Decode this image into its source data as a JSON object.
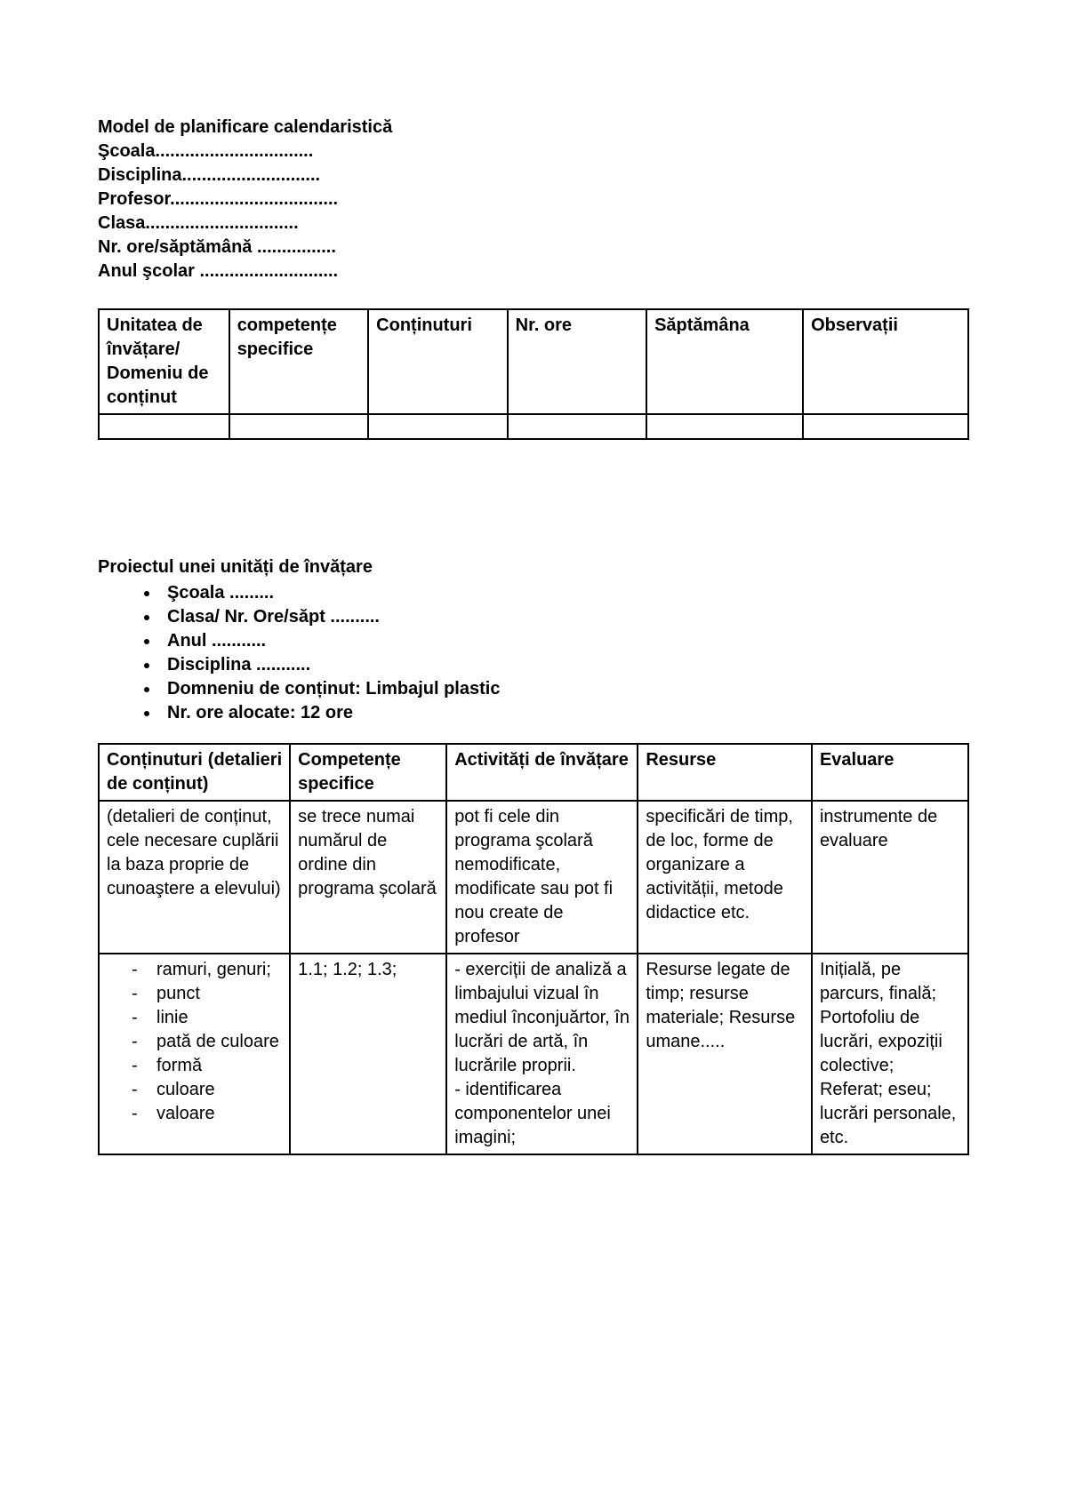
{
  "header": {
    "title": "Model de planificare calendaristică",
    "lines": [
      "Şcoala................................",
      "Disciplina............................",
      "Profesor..................................",
      "Clasa...............................",
      "Nr. ore/săptămână ................",
      "Anul şcolar ............................"
    ]
  },
  "table1": {
    "columns": [
      "Unitatea de învățare/ Domeniu de conținut",
      "competențe specifice",
      "Conținuturi",
      "Nr. ore",
      "Săptămâna",
      "Observații"
    ]
  },
  "section2": {
    "title": "Proiectul unei unități de învățare",
    "bullets": [
      "Şcoala .........",
      "Clasa/ Nr. Ore/săpt ..........",
      "Anul ...........",
      "Disciplina ...........",
      "Domneniu de conținut:  Limbajul plastic",
      "Nr. ore alocate: 12 ore"
    ]
  },
  "table2": {
    "columns": [
      "Conținuturi (detalieri de conținut)",
      "Competențe specifice",
      "Activități de învățare",
      "Resurse",
      "Evaluare"
    ],
    "row1": {
      "c1": "(detalieri de conținut, cele necesare cuplării la baza proprie de cunoaştere a elevului)",
      "c2": "se trece numai numărul de ordine din programa școlară",
      "c3": "pot fi cele din programa şcolară nemodificate, modificate sau pot fi nou create de profesor",
      "c4": "specificări de timp, de  loc, forme de organizare a activității, metode didactice etc.",
      "c5": "instrumente de evaluare"
    },
    "row2": {
      "c1_items": [
        "ramuri, genuri;",
        "punct",
        "linie",
        "pată de culoare",
        "formă",
        "culoare",
        "valoare"
      ],
      "c2": "1.1; 1.2; 1.3;",
      "c3": "- exerciții de analiză a limbajului vizual în mediul înconjuărtor, în lucrări de artă, în lucrările proprii.\n- identificarea componentelor unei imagini;",
      "c4": "Resurse legate de timp; resurse materiale; Resurse umane.....",
      "c5": "Inițială, pe parcurs, finală; Portofoliu de lucrări, expoziții colective; Referat; eseu; lucrări personale, etc."
    }
  }
}
